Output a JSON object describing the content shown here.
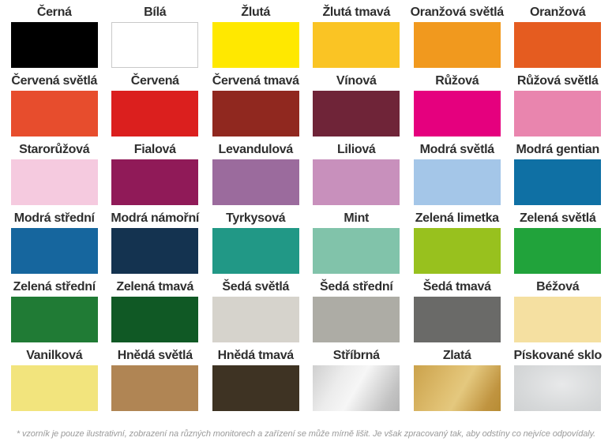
{
  "page": {
    "background": "#ffffff",
    "footnote": "* vzorník je pouze ilustrativní, zobrazení na různých monitorech a zařízení se může mírně lišit. Je však zpracovaný tak, aby odstíny co nejvíce odpovídaly."
  },
  "palette": {
    "label_color": "#2e2e2e",
    "columns": 6,
    "rows": 6,
    "swatches": [
      {
        "label": "Černá",
        "fill": "#000000"
      },
      {
        "label": "Bílá",
        "fill": "#ffffff",
        "border": "#c9c9c9"
      },
      {
        "label": "Žlutá",
        "fill": "#ffe800"
      },
      {
        "label": "Žlutá tmavá",
        "fill": "#fac424"
      },
      {
        "label": "Oranžová světlá",
        "fill": "#f1991e"
      },
      {
        "label": "Oranžová",
        "fill": "#e55c20"
      },
      {
        "label": "Červená světlá",
        "fill": "#e74d2d"
      },
      {
        "label": "Červená",
        "fill": "#db1f1e"
      },
      {
        "label": "Červená tmavá",
        "fill": "#90281f"
      },
      {
        "label": "Vínová",
        "fill": "#6f2438"
      },
      {
        "label": "Růžová",
        "fill": "#e5007e"
      },
      {
        "label": "Růžová světlá",
        "fill": "#e985ae"
      },
      {
        "label": "Starorůžová",
        "fill": "#f5cadf"
      },
      {
        "label": "Fialová",
        "fill": "#901a58"
      },
      {
        "label": "Levandulová",
        "fill": "#9b6b9d"
      },
      {
        "label": "Liliová",
        "fill": "#c890bc"
      },
      {
        "label": "Modrá světlá",
        "fill": "#a4c6e8"
      },
      {
        "label": "Modrá gentian",
        "fill": "#0f70a4"
      },
      {
        "label": "Modrá střední",
        "fill": "#16669e"
      },
      {
        "label": "Modrá námořní",
        "fill": "#143350"
      },
      {
        "label": "Tyrkysová",
        "fill": "#219886"
      },
      {
        "label": "Mint",
        "fill": "#81c3aa"
      },
      {
        "label": "Zelená limetka",
        "fill": "#98c11e"
      },
      {
        "label": "Zelená světlá",
        "fill": "#21a33b"
      },
      {
        "label": "Zelená střední",
        "fill": "#207b35"
      },
      {
        "label": "Zelená tmavá",
        "fill": "#105925"
      },
      {
        "label": "Šedá světlá",
        "fill": "#d6d3cc"
      },
      {
        "label": "Šedá střední",
        "fill": "#adaca5"
      },
      {
        "label": "Šedá tmavá",
        "fill": "#6a6a68"
      },
      {
        "label": "Béžová",
        "fill": "#f5e0a1"
      },
      {
        "label": "Vanilková",
        "fill": "#f2e47d"
      },
      {
        "label": "Hnědá světlá",
        "fill": "#b08554"
      },
      {
        "label": "Hnědá tmavá",
        "fill": "#3e3323"
      },
      {
        "label": "Stříbrná",
        "fill": "linear-gradient(120deg, #cfcfcf 0%, #ececec 30%, #f6f6f6 50%, #c2c2c2 85%, #b5b5b5 100%)"
      },
      {
        "label": "Zlatá",
        "fill": "linear-gradient(120deg, #cba24b 0%, #e0c072 42%, #e4c87e 55%, #c09440 85%, #b78c34 100%)"
      },
      {
        "label": "Pískované sklo",
        "fill": "radial-gradient(ellipse 80% 95% at 55% 42%, #e8e9ea 0%, #d6d8d9 60%, #cdcfd0 100%)"
      }
    ]
  }
}
